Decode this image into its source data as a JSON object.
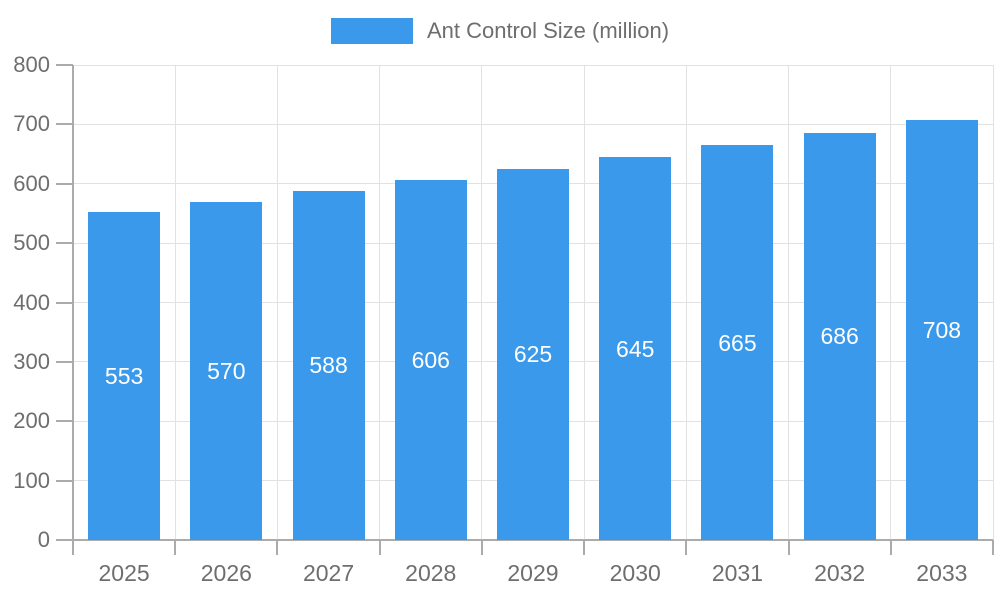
{
  "chart_data": {
    "type": "bar",
    "title": "Ant Control Size (million)",
    "legend_entries": [
      "Ant Control Size (million)"
    ],
    "legend_position": "top",
    "categories": [
      "2025",
      "2026",
      "2027",
      "2028",
      "2029",
      "2030",
      "2031",
      "2032",
      "2033"
    ],
    "values": [
      553,
      570,
      588,
      606,
      625,
      645,
      665,
      686,
      708
    ],
    "xlabel": "",
    "ylabel": "",
    "ylim": [
      0,
      800
    ],
    "y_tick_step": 100,
    "y_tick_labels": [
      "0",
      "100",
      "200",
      "300",
      "400",
      "500",
      "600",
      "700",
      "800"
    ],
    "grid": true,
    "value_label_placement": "inside-center",
    "colors": {
      "bar": "#3B99EB",
      "value_label": "#FFFFFF",
      "axis_text": "#6E6E6E",
      "grid_line": "#E2E2E2",
      "axis_line": "#ABABAB",
      "background": "#FFFFFF"
    }
  }
}
